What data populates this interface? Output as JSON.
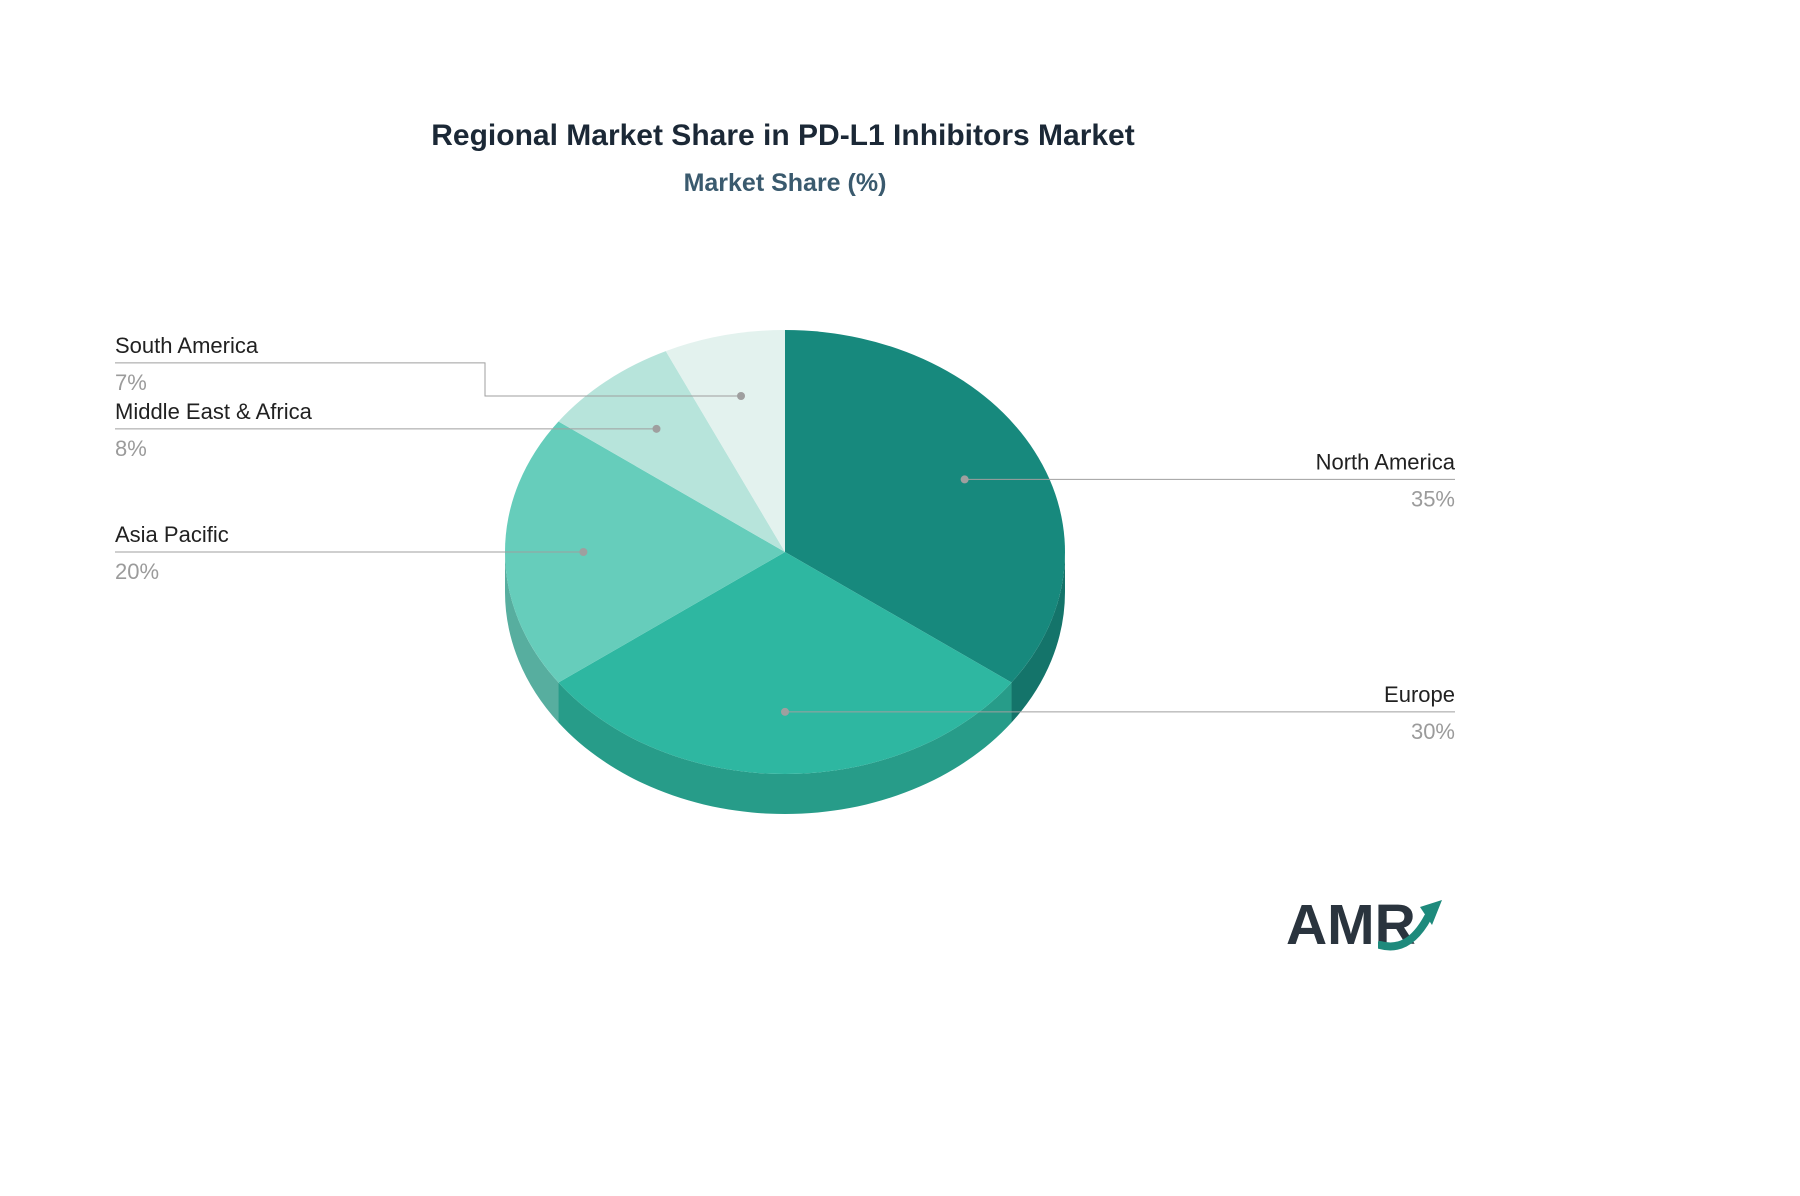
{
  "chart_data": {
    "type": "pie",
    "title": "Regional Market Share in PD-L1 Inhibitors Market",
    "subtitle": "Market Share (%)",
    "labels": [
      "North America",
      "Europe",
      "Asia Pacific",
      "Middle East & Africa",
      "South America"
    ],
    "values": [
      35,
      30,
      20,
      8,
      7
    ],
    "unit": "%",
    "colors": [
      "#17897d",
      "#2eb7a1",
      "#66cdbb",
      "#b7e4db",
      "#e3f2ee"
    ],
    "start_angle_deg": 0,
    "direction": "clockwise",
    "effect": "3d",
    "legend": "none",
    "label_format": "name above line, percent below line",
    "leader_line_color": "#9f9f9f",
    "label_name_color": "#212121",
    "label_value_color": "#9b9b9b"
  },
  "logo": {
    "text": "AMR",
    "arrow_color": "#1e8a7c"
  }
}
